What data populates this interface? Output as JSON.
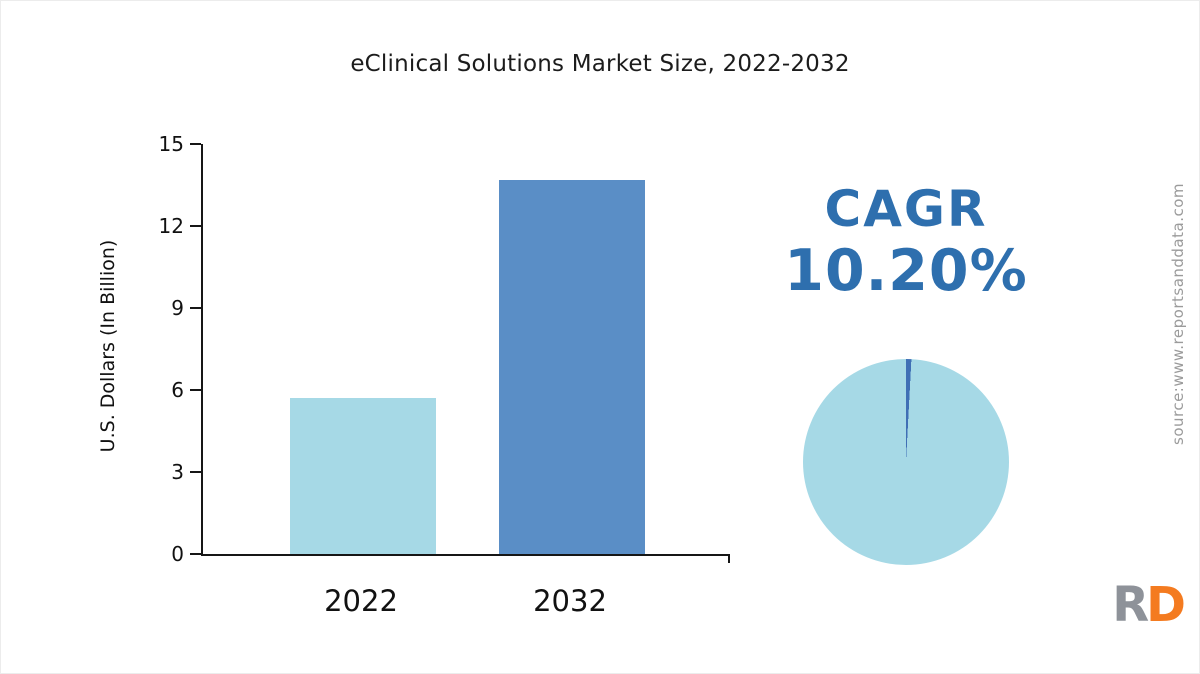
{
  "title": "eClinical Solutions Market Size, 2022-2032",
  "chart_data": {
    "type": "bar",
    "title": "eClinical Solutions Market Size, 2022-2032",
    "categories": [
      "2022",
      "2032"
    ],
    "values": [
      5.7,
      13.7
    ],
    "xlabel": "",
    "ylabel": "U.S. Dollars (In Billion)",
    "ylim": [
      0,
      15
    ],
    "yticks": [
      0,
      3,
      6,
      9,
      12,
      15
    ],
    "bar_colors": [
      "#a6d9e6",
      "#5a8ec6"
    ],
    "grid": false,
    "legend": "none"
  },
  "cagr": {
    "label": "CAGR",
    "value": "10.20%",
    "color": "#2e6fae"
  },
  "pie": {
    "main_color": "#a6d9e6",
    "sliver_color": "#3f6fb5",
    "sliver_degrees": 3
  },
  "source": "source:www.reportsanddata.com",
  "logo": {
    "r": "R",
    "d": "D",
    "r_color": "#8e9299",
    "d_color": "#f47b20"
  }
}
